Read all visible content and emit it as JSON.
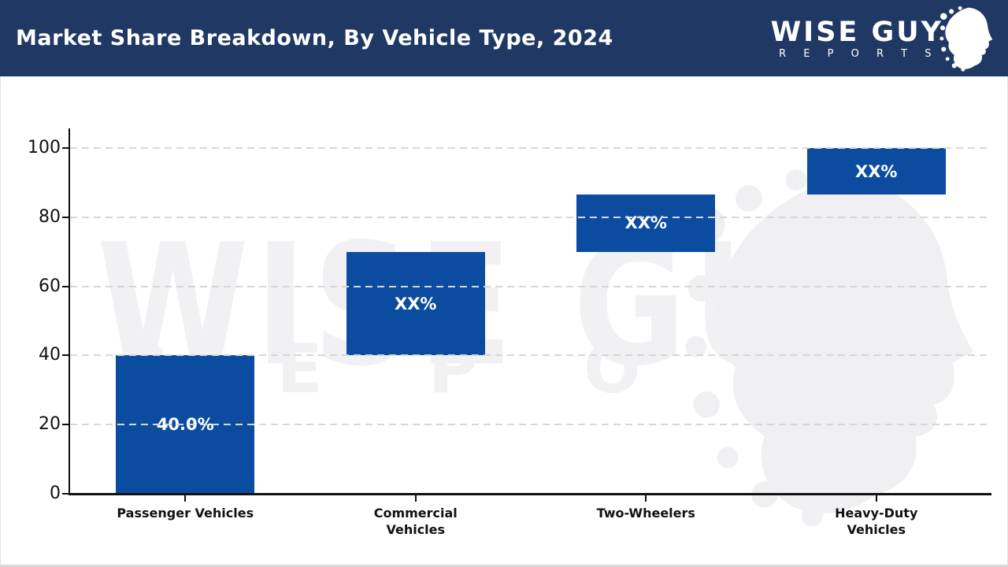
{
  "header": {
    "title": "Market Share Breakdown, By Vehicle Type, 2024",
    "logo": {
      "name": "WISE GUY",
      "subtitle": "R E P O R T S"
    }
  },
  "watermark": {
    "line1": "WISE GU",
    "line2": "R E P O R T S"
  },
  "colors": {
    "header_background": "#1f3864",
    "bar_blue": "#0c4ca0",
    "axis_black": "#111111",
    "gridline_gray": "#d7d7d7",
    "watermark_gray": "#f1f1f4"
  },
  "chart_data": {
    "type": "bar",
    "subtype": "waterfall",
    "title": "Market Share Breakdown, By Vehicle Type, 2024",
    "categories": [
      "Passenger Vehicles",
      "Commercial\nVehicles",
      "Two-Wheelers",
      "Heavy-Duty\nVehicles"
    ],
    "segments": [
      {
        "category": "Passenger Vehicles",
        "start": 0,
        "end": 40,
        "value_label": "40.0%"
      },
      {
        "category": "Commercial Vehicles",
        "start": 40,
        "end": 70,
        "value_label": "XX%"
      },
      {
        "category": "Two-Wheelers",
        "start": 70,
        "end": 86.5,
        "value_label": "XX%"
      },
      {
        "category": "Heavy-Duty Vehicles",
        "start": 86.5,
        "end": 100,
        "value_label": "XX%"
      }
    ],
    "yticks": [
      0,
      20,
      40,
      60,
      80,
      100
    ],
    "ylim": [
      0,
      105
    ],
    "xlabel": "",
    "ylabel": "",
    "grid": "horizontal-dashed",
    "legend": "none",
    "bar_color": "#0c4ca0"
  }
}
